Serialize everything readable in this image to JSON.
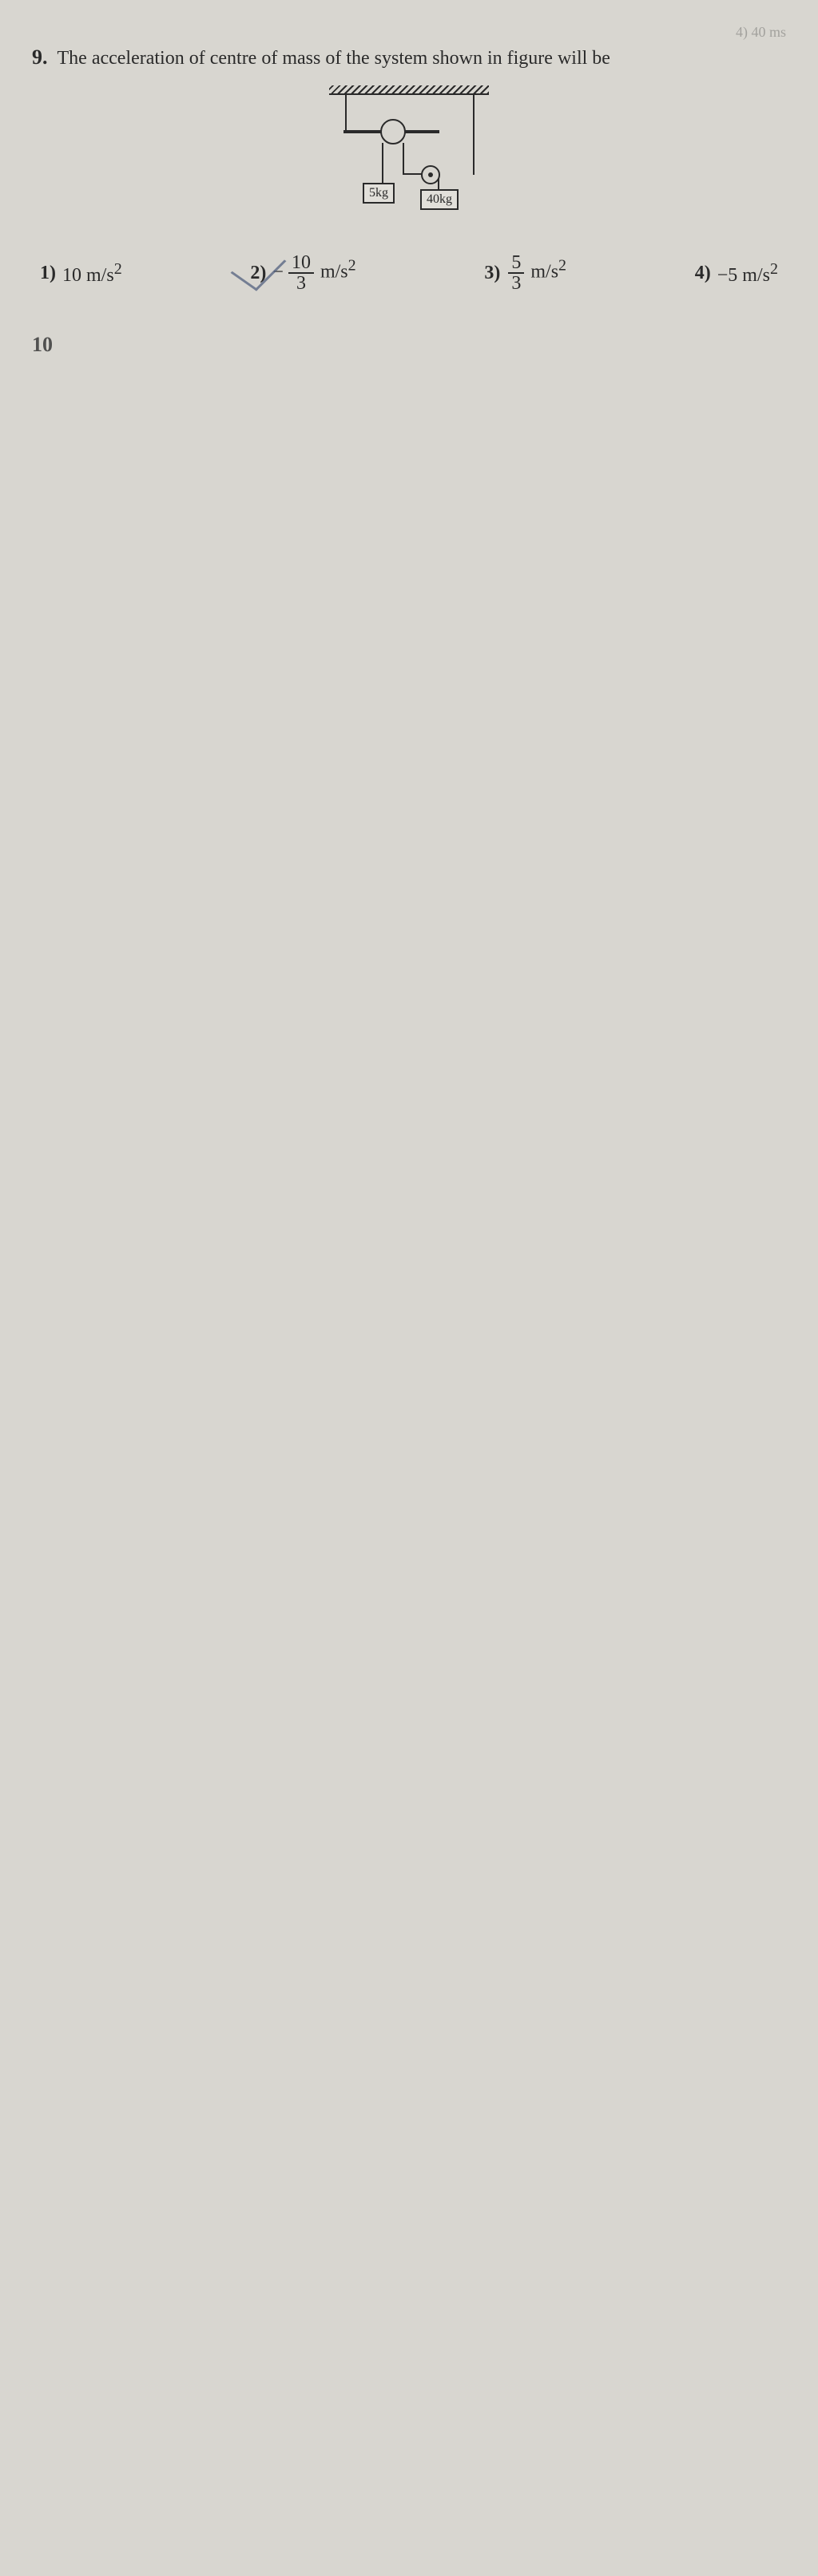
{
  "question": {
    "number": "9.",
    "text": "The acceleration of centre of mass of the system shown in figure will be"
  },
  "figure": {
    "mass_small_label": "5kg",
    "mass_large_label": "40kg"
  },
  "options": {
    "o1": {
      "label": "1)",
      "value": "10 m/s",
      "sup": "2"
    },
    "o2": {
      "label": "2)",
      "neg": "−",
      "num": "10",
      "den": "3",
      "unit": "m/s",
      "sup": "2"
    },
    "o3": {
      "label": "3)",
      "num": "5",
      "den": "3",
      "unit": "m/s",
      "sup": "2"
    },
    "o4": {
      "label": "4)",
      "value": "−5 m/s",
      "sup": "2"
    }
  },
  "next_q": "10",
  "faded": "4) 40 ms"
}
